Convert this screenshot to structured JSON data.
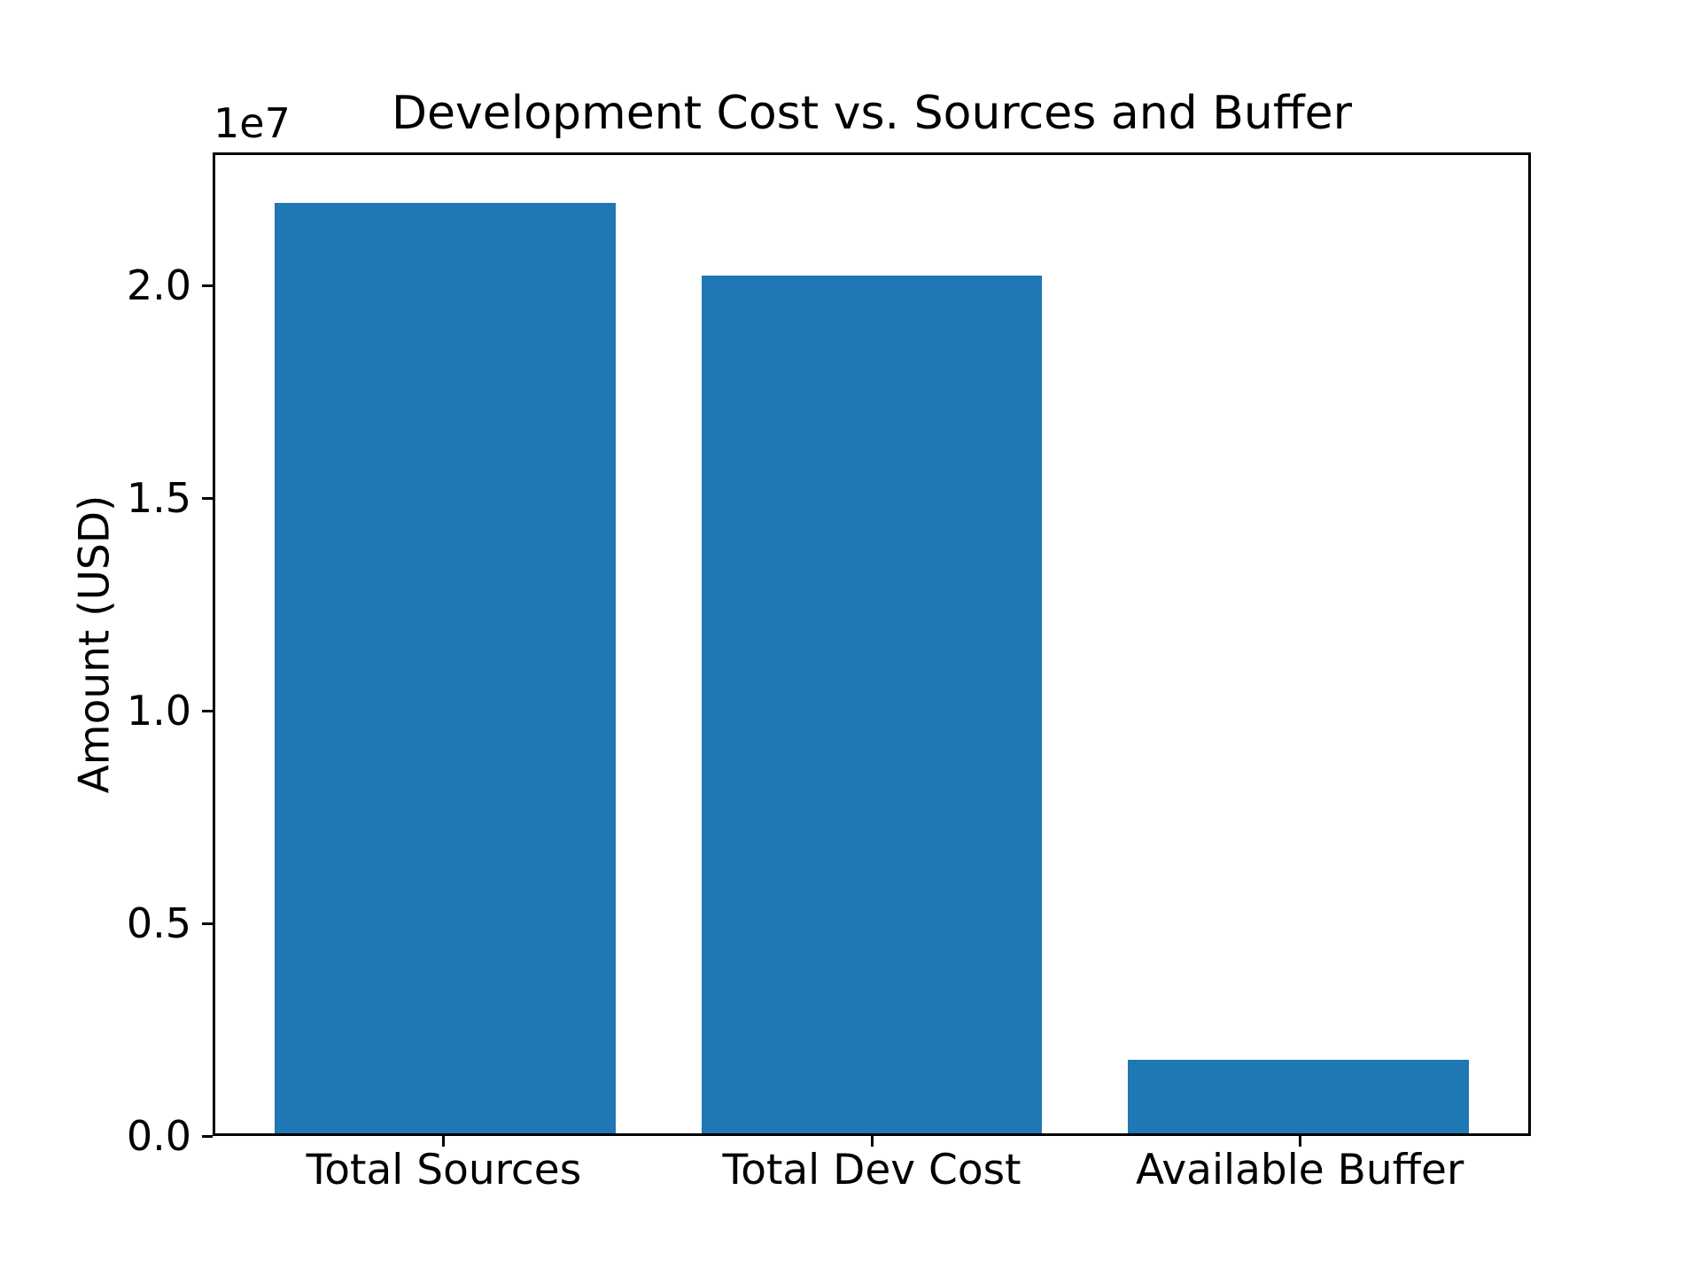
{
  "chart_data": {
    "type": "bar",
    "title": "Development Cost vs. Sources and Buffer",
    "xlabel": "",
    "ylabel": "Amount (USD)",
    "offset_text": "1e7",
    "categories": [
      "Total Sources",
      "Total Dev Cost",
      "Available Buffer"
    ],
    "values": [
      22000000,
      20270000,
      1730000
    ],
    "ylim": [
      0,
      23125000
    ],
    "yticks": [
      0,
      5000000,
      10000000,
      15000000,
      20000000
    ],
    "ytick_labels": [
      "0.0",
      "0.5",
      "1.0",
      "1.5",
      "2.0"
    ],
    "bar_color": "#1f77b4",
    "axis_color": "#000000",
    "text_color": "#000000",
    "background_color": "#ffffff",
    "grid": false,
    "legend_position": "none"
  }
}
